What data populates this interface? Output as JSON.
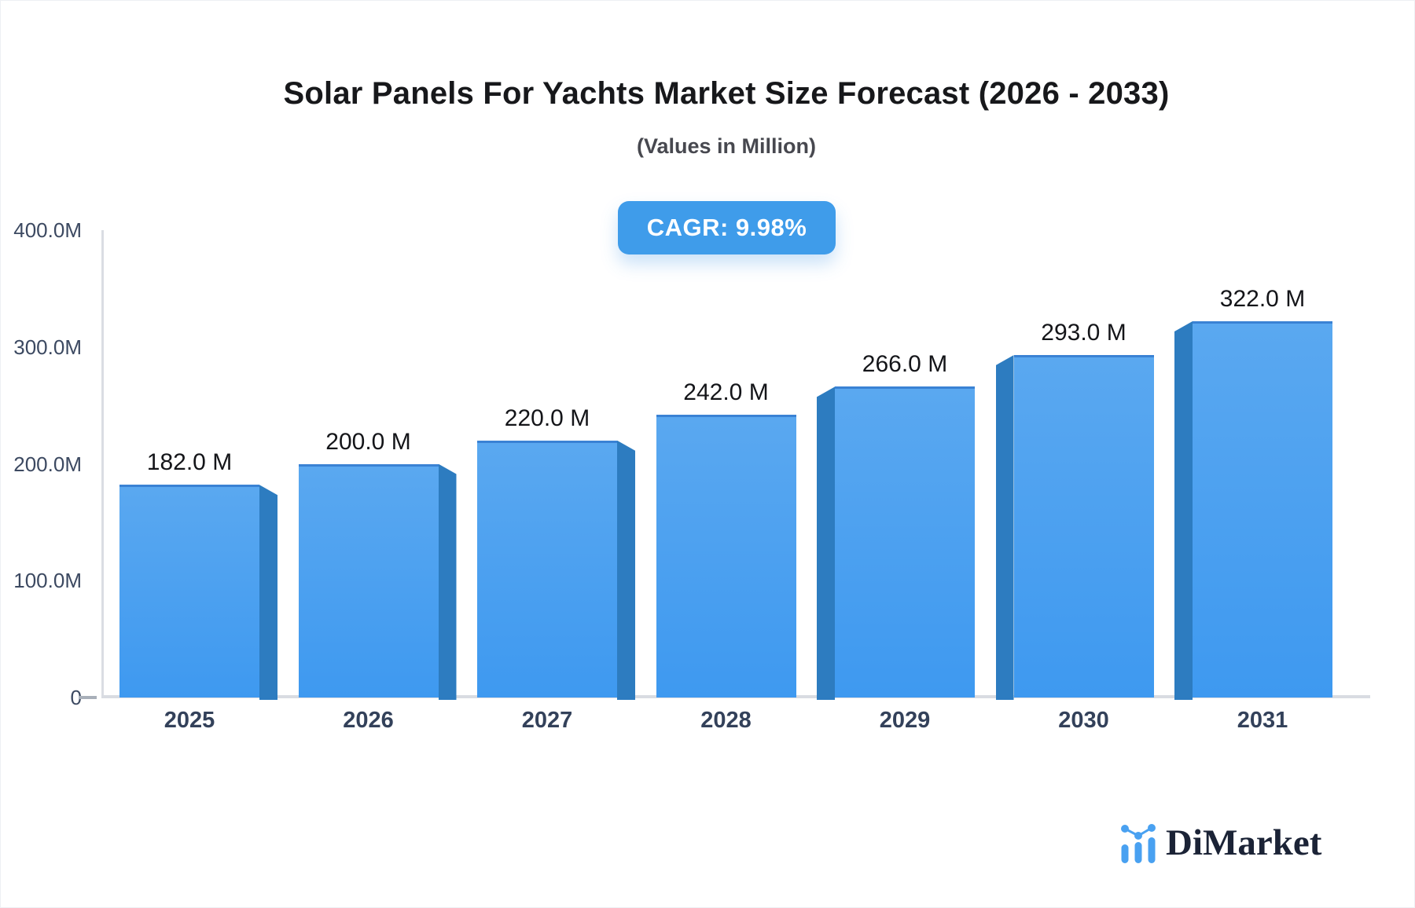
{
  "title": "Solar Panels For Yachts Market Size Forecast (2026 - 2033)",
  "subtitle": "(Values in Million)",
  "badge": {
    "label": "CAGR: 9.98%"
  },
  "chart_data": {
    "type": "bar",
    "title": "Solar Panels For Yachts Market Size Forecast (2026 - 2033)",
    "subtitle": "(Values in Million)",
    "cagr": "9.98%",
    "categories": [
      "2025",
      "2026",
      "2027",
      "2028",
      "2029",
      "2030",
      "2031"
    ],
    "values": [
      182.0,
      200.0,
      220.0,
      242.0,
      266.0,
      293.0,
      322.0
    ],
    "value_labels": [
      "182.0 M",
      "200.0 M",
      "220.0 M",
      "242.0 M",
      "266.0 M",
      "293.0 M",
      "322.0 M"
    ],
    "xlabel": "",
    "ylabel": "",
    "ylim": [
      0,
      400
    ],
    "yticks": [
      {
        "value": 0,
        "label": "0"
      },
      {
        "value": 100,
        "label": "100.0M"
      },
      {
        "value": 200,
        "label": "200.0M"
      },
      {
        "value": 300,
        "label": "300.0M"
      },
      {
        "value": 400,
        "label": "400.0M"
      }
    ],
    "grid": false,
    "legend": "none",
    "bar_face_color_top": "#5aa8f0",
    "bar_face_color_bottom": "#3e99f0",
    "bar_side_color": "#2d7cc0",
    "bar_top_edge_color": "#3a82d4"
  },
  "logo": {
    "text": "DiMarket",
    "icon": "bar-chart-logo-icon",
    "accent_color": "#49a1f1",
    "text_color": "#1b2336"
  }
}
